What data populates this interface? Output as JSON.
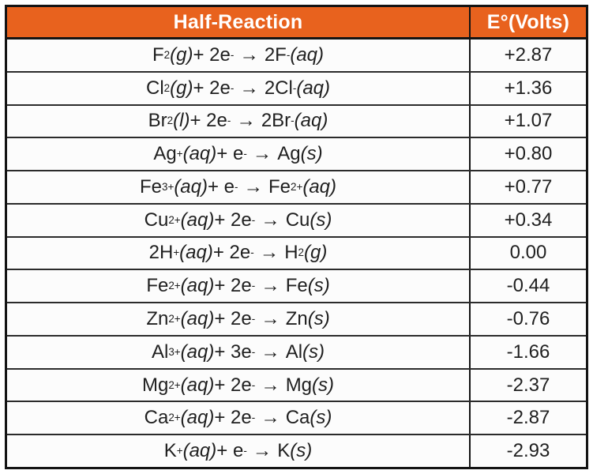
{
  "colors": {
    "header_bg": "#e8621e",
    "header_text": "#ffffff",
    "border": "#141414",
    "row_divider": "#2b2b2b",
    "body_bg": "#fcfcfc",
    "body_text": "#1f1f1f"
  },
  "header": {
    "reaction_label": "Half-Reaction",
    "potential_label": "E°(Volts)"
  },
  "rows": [
    {
      "potential": "+2.87",
      "reaction": [
        {
          "t": "F"
        },
        {
          "sb": "2"
        },
        {
          "it": "(g)"
        },
        {
          "t": " + 2e"
        },
        {
          "sp": "-"
        },
        {
          "ar": "→"
        },
        {
          "t": "2F"
        },
        {
          "sp": "-"
        },
        {
          "it": "(aq)"
        }
      ]
    },
    {
      "potential": "+1.36",
      "reaction": [
        {
          "t": "Cl"
        },
        {
          "sb": "2"
        },
        {
          "it": "(g)"
        },
        {
          "t": " + 2e"
        },
        {
          "sp": "-"
        },
        {
          "ar": "→"
        },
        {
          "t": "2Cl"
        },
        {
          "sp": "-"
        },
        {
          "it": "(aq)"
        }
      ]
    },
    {
      "potential": "+1.07",
      "reaction": [
        {
          "t": "Br"
        },
        {
          "sb": "2"
        },
        {
          "it": "(l)"
        },
        {
          "t": " + 2e"
        },
        {
          "sp": "-"
        },
        {
          "ar": "→"
        },
        {
          "t": "2Br"
        },
        {
          "sp": "-"
        },
        {
          "it": "(aq)"
        }
      ]
    },
    {
      "potential": "+0.80",
      "reaction": [
        {
          "t": "Ag"
        },
        {
          "sp": "+"
        },
        {
          "it": "(aq)"
        },
        {
          "t": " + e"
        },
        {
          "sp": "-"
        },
        {
          "ar": "→"
        },
        {
          "t": "Ag"
        },
        {
          "it": "(s)"
        }
      ]
    },
    {
      "potential": "+0.77",
      "reaction": [
        {
          "t": "Fe"
        },
        {
          "sp": "3+"
        },
        {
          "it": "(aq)"
        },
        {
          "t": " + e"
        },
        {
          "sp": "-"
        },
        {
          "ar": "→"
        },
        {
          "t": "Fe"
        },
        {
          "sp": "2+"
        },
        {
          "it": "(aq)"
        }
      ]
    },
    {
      "potential": "+0.34",
      "reaction": [
        {
          "t": "Cu"
        },
        {
          "sp": "2+"
        },
        {
          "it": "(aq)"
        },
        {
          "t": " + 2e"
        },
        {
          "sp": "-"
        },
        {
          "ar": "→"
        },
        {
          "t": "Cu"
        },
        {
          "it": "(s)"
        }
      ]
    },
    {
      "potential": "0.00",
      "reaction": [
        {
          "t": "2H"
        },
        {
          "sp": "+"
        },
        {
          "it": "(aq)"
        },
        {
          "t": " + 2e"
        },
        {
          "sp": "-"
        },
        {
          "ar": "→"
        },
        {
          "t": "H"
        },
        {
          "sb": "2"
        },
        {
          "it": "(g)"
        }
      ]
    },
    {
      "potential": "-0.44",
      "reaction": [
        {
          "t": "Fe"
        },
        {
          "sp": "2+"
        },
        {
          "it": "(aq)"
        },
        {
          "t": " + 2e"
        },
        {
          "sp": "-"
        },
        {
          "ar": "→"
        },
        {
          "t": "Fe"
        },
        {
          "it": "(s)"
        }
      ]
    },
    {
      "potential": "-0.76",
      "reaction": [
        {
          "t": "Zn"
        },
        {
          "sp": "2+"
        },
        {
          "it": "(aq)"
        },
        {
          "t": " + 2e"
        },
        {
          "sp": "-"
        },
        {
          "ar": "→"
        },
        {
          "t": "Zn"
        },
        {
          "it": "(s)"
        }
      ]
    },
    {
      "potential": "-1.66",
      "reaction": [
        {
          "t": "Al"
        },
        {
          "sp": "3+"
        },
        {
          "it": "(aq)"
        },
        {
          "t": " + 3e"
        },
        {
          "sp": "-"
        },
        {
          "ar": "→"
        },
        {
          "t": "Al"
        },
        {
          "it": "(s)"
        }
      ]
    },
    {
      "potential": "-2.37",
      "reaction": [
        {
          "t": "Mg"
        },
        {
          "sp": "2+"
        },
        {
          "it": "(aq)"
        },
        {
          "t": " + 2e"
        },
        {
          "sp": "-"
        },
        {
          "ar": "→"
        },
        {
          "t": "Mg"
        },
        {
          "it": "(s)"
        }
      ]
    },
    {
      "potential": "-2.87",
      "reaction": [
        {
          "t": "Ca"
        },
        {
          "sp": "2+"
        },
        {
          "it": "(aq)"
        },
        {
          "t": " + 2e"
        },
        {
          "sp": "-"
        },
        {
          "ar": "→"
        },
        {
          "t": "Ca"
        },
        {
          "it": "(s)"
        }
      ]
    },
    {
      "potential": "-2.93",
      "reaction": [
        {
          "t": "K"
        },
        {
          "sp": "+"
        },
        {
          "it": "(aq)"
        },
        {
          "t": " + e"
        },
        {
          "sp": "-"
        },
        {
          "ar": "→"
        },
        {
          "t": "K"
        },
        {
          "it": "(s)"
        }
      ]
    }
  ]
}
